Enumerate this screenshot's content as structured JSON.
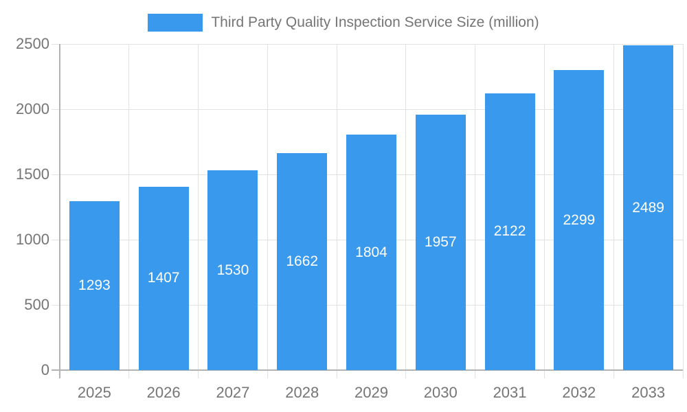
{
  "chart_data": {
    "type": "bar",
    "title": "Third Party Quality Inspection Service Size (million)",
    "categories": [
      "2025",
      "2026",
      "2027",
      "2028",
      "2029",
      "2030",
      "2031",
      "2032",
      "2033"
    ],
    "values": [
      1293,
      1407,
      1530,
      1662,
      1804,
      1957,
      2122,
      2299,
      2489
    ],
    "series": [
      {
        "name": "Third Party Quality Inspection Service Size (million)",
        "values": [
          1293,
          1407,
          1530,
          1662,
          1804,
          1957,
          2122,
          2299,
          2489
        ]
      }
    ],
    "xlabel": "",
    "ylabel": "",
    "ylim": [
      0,
      2500
    ],
    "yticks": [
      0,
      500,
      1000,
      1500,
      2000,
      2500
    ],
    "grid": true,
    "legend_position": "top",
    "value_labels": "inside-center",
    "colors": {
      "bar": "#3999EC",
      "value_label": "#FFFFFF",
      "axis_text": "#757575",
      "legend_text": "#757575",
      "gridline": "#E2E2E2",
      "axis_line": "#B3B3B3",
      "background": "#FFFFFF"
    }
  }
}
